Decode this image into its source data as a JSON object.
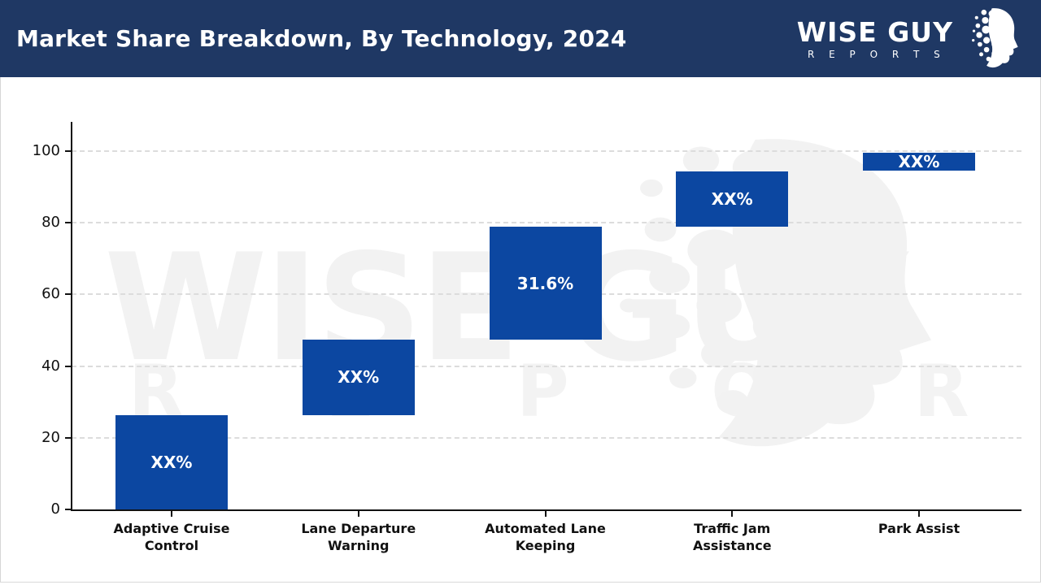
{
  "header": {
    "title": "Market Share Breakdown, By Technology, 2024",
    "bg_color": "#1f3864",
    "logo": {
      "line1": "WISE GUY",
      "line2": "R E P O R T S"
    }
  },
  "watermark": {
    "line1": "WISE GUY",
    "line2": "R E P O R T S"
  },
  "chart_data": {
    "type": "bar",
    "subtype": "waterfall",
    "title": "Market Share Breakdown, By Technology, 2024",
    "categories": [
      "Adaptive Cruise\nControl",
      "Lane Departure\nWarning",
      "Automated Lane\nKeeping",
      "Traffic Jam\nAssistance",
      "Park Assist"
    ],
    "segments": [
      {
        "category": "Adaptive Cruise Control",
        "start": 0,
        "end": 26.3,
        "label": "XX%"
      },
      {
        "category": "Lane Departure Warning",
        "start": 26.3,
        "end": 47.4,
        "label": "XX%"
      },
      {
        "category": "Automated Lane Keeping",
        "start": 47.4,
        "end": 78.9,
        "label": "31.6%"
      },
      {
        "category": "Traffic Jam Assistance",
        "start": 78.9,
        "end": 94.3,
        "label": "XX%"
      },
      {
        "category": "Park Assist",
        "start": 94.5,
        "end": 99.5,
        "label": "XX%"
      }
    ],
    "xlabel": "",
    "ylabel": "",
    "ylim": [
      0,
      100
    ],
    "yticks": [
      0,
      20,
      40,
      60,
      80,
      100
    ],
    "grid": "horizontal-dashed",
    "legend": "none",
    "bar_color": "#0c47a1",
    "bar_label_color": "#ffffff",
    "gridline_color": "#dcdcdc"
  }
}
